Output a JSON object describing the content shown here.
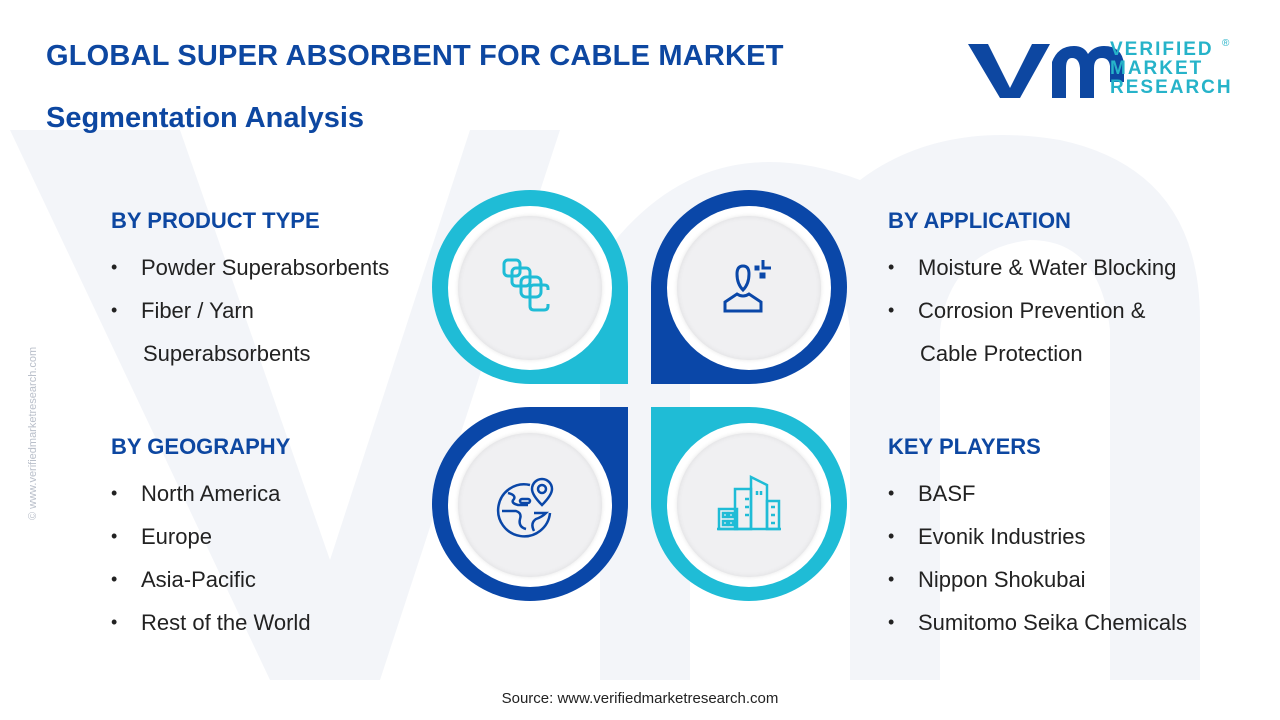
{
  "header": {
    "title": "GLOBAL SUPER ABSORBENT FOR CABLE MARKET",
    "subtitle": "Segmentation Analysis"
  },
  "logo": {
    "line1": "VERIFIED",
    "line2": "MARKET",
    "line3": "RESEARCH",
    "mark": "vmr",
    "registered": "®"
  },
  "side_watermark": "© www.verifiedmarketresearch.com",
  "colors": {
    "dark_blue": "#0a47a8",
    "cyan": "#1fbcd6",
    "heading": "#0d47a1"
  },
  "sections": {
    "product": {
      "title": "BY PRODUCT TYPE",
      "items": [
        "Powder Superabsorbents",
        "Fiber / Yarn",
        "Superabsorbents"
      ],
      "icon": "stacked-squares-icon"
    },
    "application": {
      "title": "BY APPLICATION",
      "items": [
        "Moisture & Water Blocking",
        "Corrosion Prevention &",
        "Cable Protection"
      ],
      "icon": "person-icon"
    },
    "geography": {
      "title": "BY GEOGRAPHY",
      "items": [
        "North America",
        "Europe",
        "Asia-Pacific",
        "Rest of the World"
      ],
      "icon": "globe-pin-icon"
    },
    "players": {
      "title": "KEY PLAYERS",
      "items": [
        "BASF",
        "Evonik Industries",
        "Nippon Shokubai",
        "Sumitomo Seika Chemicals"
      ],
      "icon": "buildings-icon"
    }
  },
  "source": "Source: www.verifiedmarketresearch.com"
}
